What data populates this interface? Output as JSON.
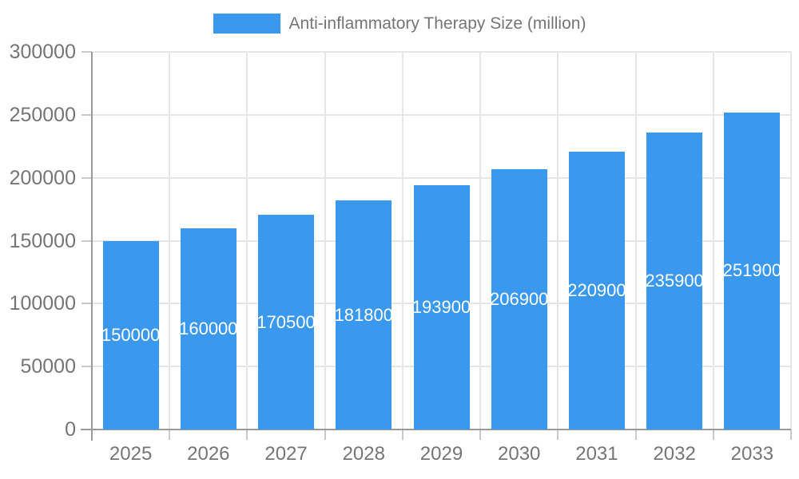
{
  "legend": {
    "label": "Anti-inflammatory Therapy Size (million)"
  },
  "chart_data": {
    "type": "bar",
    "title": "Anti-inflammatory Therapy Size (million)",
    "categories": [
      "2025",
      "2026",
      "2027",
      "2028",
      "2029",
      "2030",
      "2031",
      "2032",
      "2033"
    ],
    "values": [
      150000,
      160000,
      170500,
      181800,
      193900,
      206900,
      220900,
      235900,
      251900
    ],
    "series": [
      {
        "name": "Anti-inflammatory Therapy Size (million)",
        "values": [
          150000,
          160000,
          170500,
          181800,
          193900,
          206900,
          220900,
          235900,
          251900
        ]
      }
    ],
    "xlabel": "",
    "ylabel": "",
    "ylim": [
      0,
      300000
    ],
    "yticks": [
      0,
      50000,
      100000,
      150000,
      200000,
      250000,
      300000
    ],
    "grid": true,
    "legend_position": "top-center",
    "value_labels_position": "inside-center",
    "colors": {
      "bar": "#3a99ee",
      "value_label": "#ffffff",
      "grid": "#e6e6e6",
      "axis": "#9a9a9a",
      "tick": "#c9c9c9",
      "text": "#757575"
    }
  }
}
